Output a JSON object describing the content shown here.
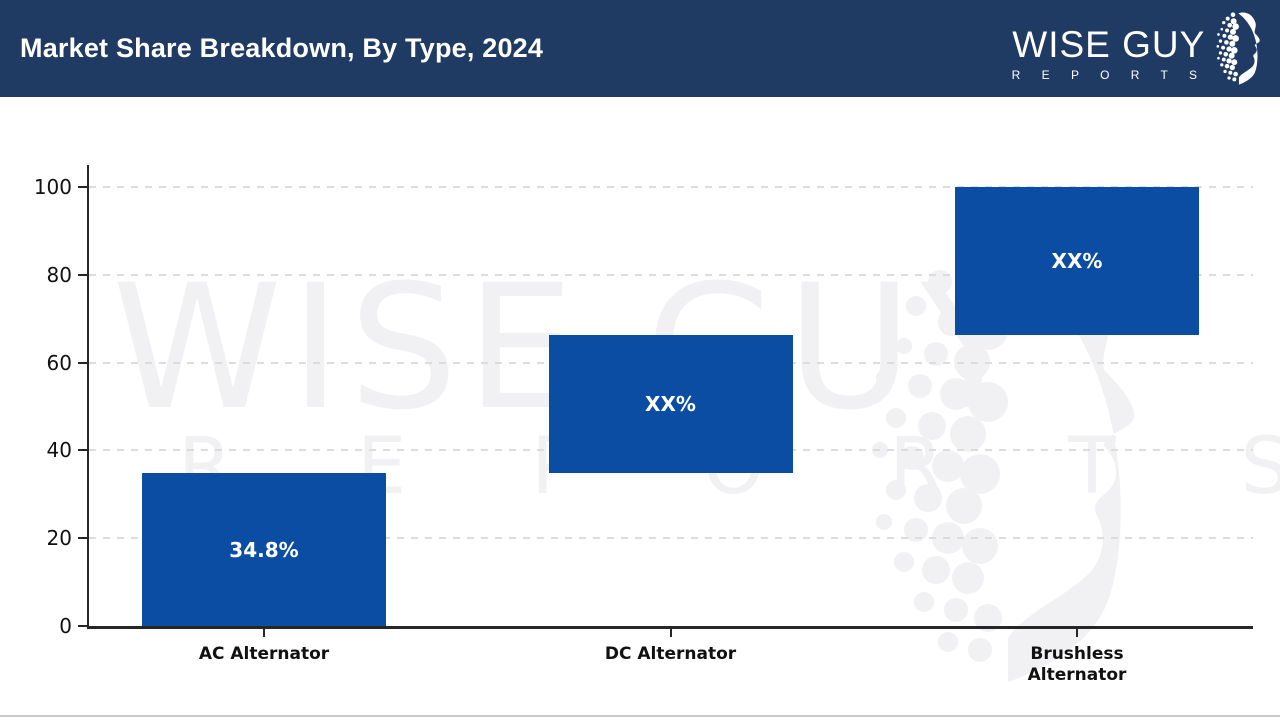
{
  "header": {
    "title": "Market Share Breakdown, By Type, 2024",
    "brand": {
      "name": "WISE GUY",
      "sub": "R E P O R T S"
    }
  },
  "watermark": {
    "line1": "WISE GUY",
    "line2": "R E P O R T S"
  },
  "chart_data": {
    "type": "bar",
    "subtype": "waterfall-stacked",
    "title": "Market Share Breakdown, By Type, 2024",
    "categories": [
      "AC Alternator",
      "DC Alternator",
      "Brushless Alternator"
    ],
    "segments": [
      {
        "category": "AC Alternator",
        "start": 0,
        "end": 34.8,
        "value": 34.8,
        "label": "34.8%"
      },
      {
        "category": "DC Alternator",
        "start": 34.8,
        "end": 66.3,
        "value": 31.5,
        "label": "XX%"
      },
      {
        "category": "Brushless Alternator",
        "start": 66.3,
        "end": 100,
        "value": 33.7,
        "label": "XX%"
      }
    ],
    "yticks": [
      0,
      20,
      40,
      60,
      80,
      100
    ],
    "ylim": [
      0,
      105
    ],
    "xlabel": "",
    "ylabel": "",
    "grid": "horizontal-dashed",
    "legend": "none",
    "bar_color": "#0B4DA2",
    "label_color": "#FFFFFF"
  },
  "colors": {
    "header_bg": "#1F3A63",
    "bar": "#0B4DA2",
    "grid": "#DCDCDC",
    "watermark": "#F1F1F4",
    "axis": "#262626"
  }
}
